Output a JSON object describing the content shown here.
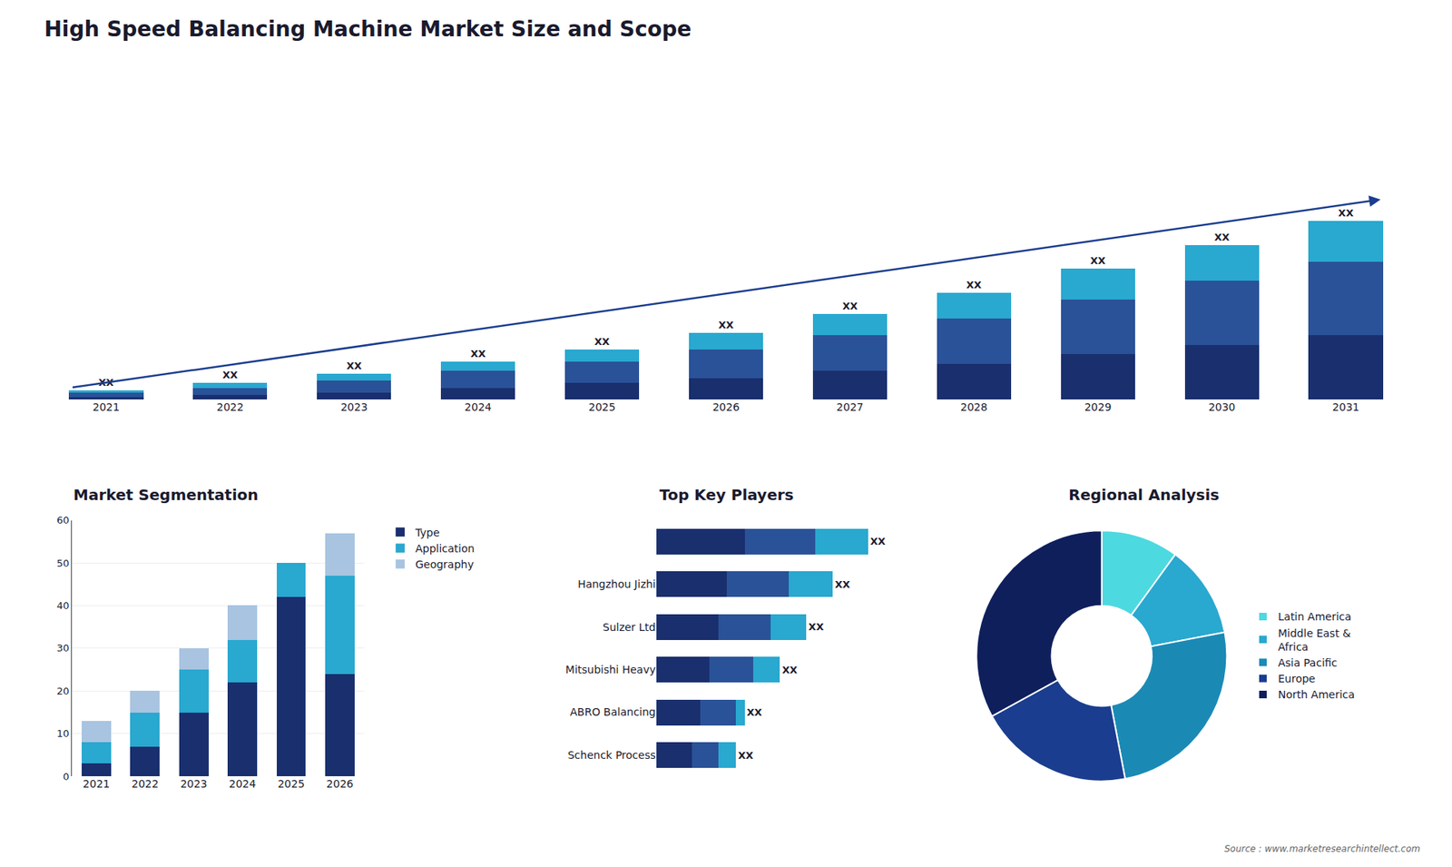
{
  "title": "High Speed Balancing Machine Market Size and Scope",
  "annotations": [
    "Source : www.marketresearchintellect.com"
  ],
  "chart_data": [
    {
      "type": "bar",
      "stacked": true,
      "categories": [
        "2021",
        "2022",
        "2023",
        "2024",
        "2025",
        "2026",
        "2027",
        "2028",
        "2029",
        "2030",
        "2031"
      ],
      "series": [
        {
          "color": "#1a2f6e",
          "values": [
            1,
            2,
            3,
            5,
            7,
            9,
            12,
            15,
            19,
            23,
            27
          ]
        },
        {
          "color": "#2a5298",
          "values": [
            2,
            3,
            5,
            7,
            9,
            12,
            15,
            19,
            23,
            27,
            31
          ]
        },
        {
          "color": "#29a8d0",
          "values": [
            1,
            2,
            3,
            4,
            5,
            7,
            9,
            11,
            13,
            15,
            17
          ]
        }
      ],
      "annotations": [
        "XX",
        "XX",
        "XX",
        "XX",
        "XX",
        "XX",
        "XX",
        "XX",
        "XX",
        "XX",
        "XX"
      ],
      "ylim": [
        0,
        101.25
      ],
      "tick_labels": "x",
      "grid": false
    },
    {
      "type": "bar",
      "stacked": true,
      "title": "Market Segmentation",
      "categories": [
        "2021",
        "2022",
        "2023",
        "2024",
        "2025",
        "2026"
      ],
      "series": [
        {
          "name": "Type",
          "color": "#1a2f6e",
          "values": [
            3,
            7,
            15,
            22,
            42,
            24
          ]
        },
        {
          "name": "Application",
          "color": "#29a8d0",
          "values": [
            5,
            8,
            10,
            10,
            8,
            23
          ]
        },
        {
          "name": "Geography",
          "color": "#a8c4e0",
          "values": [
            5,
            5,
            5,
            8,
            0,
            10
          ]
        }
      ],
      "ylim": [
        0,
        60
      ],
      "yticks": [
        0,
        10,
        20,
        30,
        40,
        50,
        60
      ],
      "grid": true,
      "legend": "right"
    },
    {
      "type": "bar",
      "orientation": "horizontal",
      "stacked": true,
      "title": "Top Key Players",
      "categories": [
        null,
        "Hangzhou Jizhi",
        "Sulzer Ltd",
        "Mitsubishi Heavy",
        "ABRO Balancing",
        "Schenck Process"
      ],
      "series": [
        {
          "color": "#1a2f6e",
          "values": [
            5,
            4,
            3.5,
            3,
            2.5,
            2
          ]
        },
        {
          "color": "#2a5298",
          "values": [
            4,
            3.5,
            3,
            2.5,
            2,
            1.5
          ]
        },
        {
          "color": "#29a8d0",
          "values": [
            3,
            2.5,
            2,
            1.5,
            0.5,
            1
          ]
        }
      ],
      "annotations": [
        "XX",
        "XX",
        "XX",
        "XX",
        "XX",
        "XX"
      ],
      "xlim": [
        0,
        15
      ],
      "tick_labels": "y",
      "grid": false
    },
    {
      "type": "pie",
      "title": "Regional Analysis",
      "categories": [
        "Latin America",
        "Middle East &\nAfrica",
        "Asia Pacific",
        "Europe",
        "North America"
      ],
      "values": [
        10,
        12,
        25,
        20,
        33
      ],
      "colors": [
        "#4dd9e0",
        "#29a8d0",
        "#1a8ab5",
        "#1a3d8f",
        "#0f1f5c"
      ],
      "legend": "right"
    }
  ]
}
